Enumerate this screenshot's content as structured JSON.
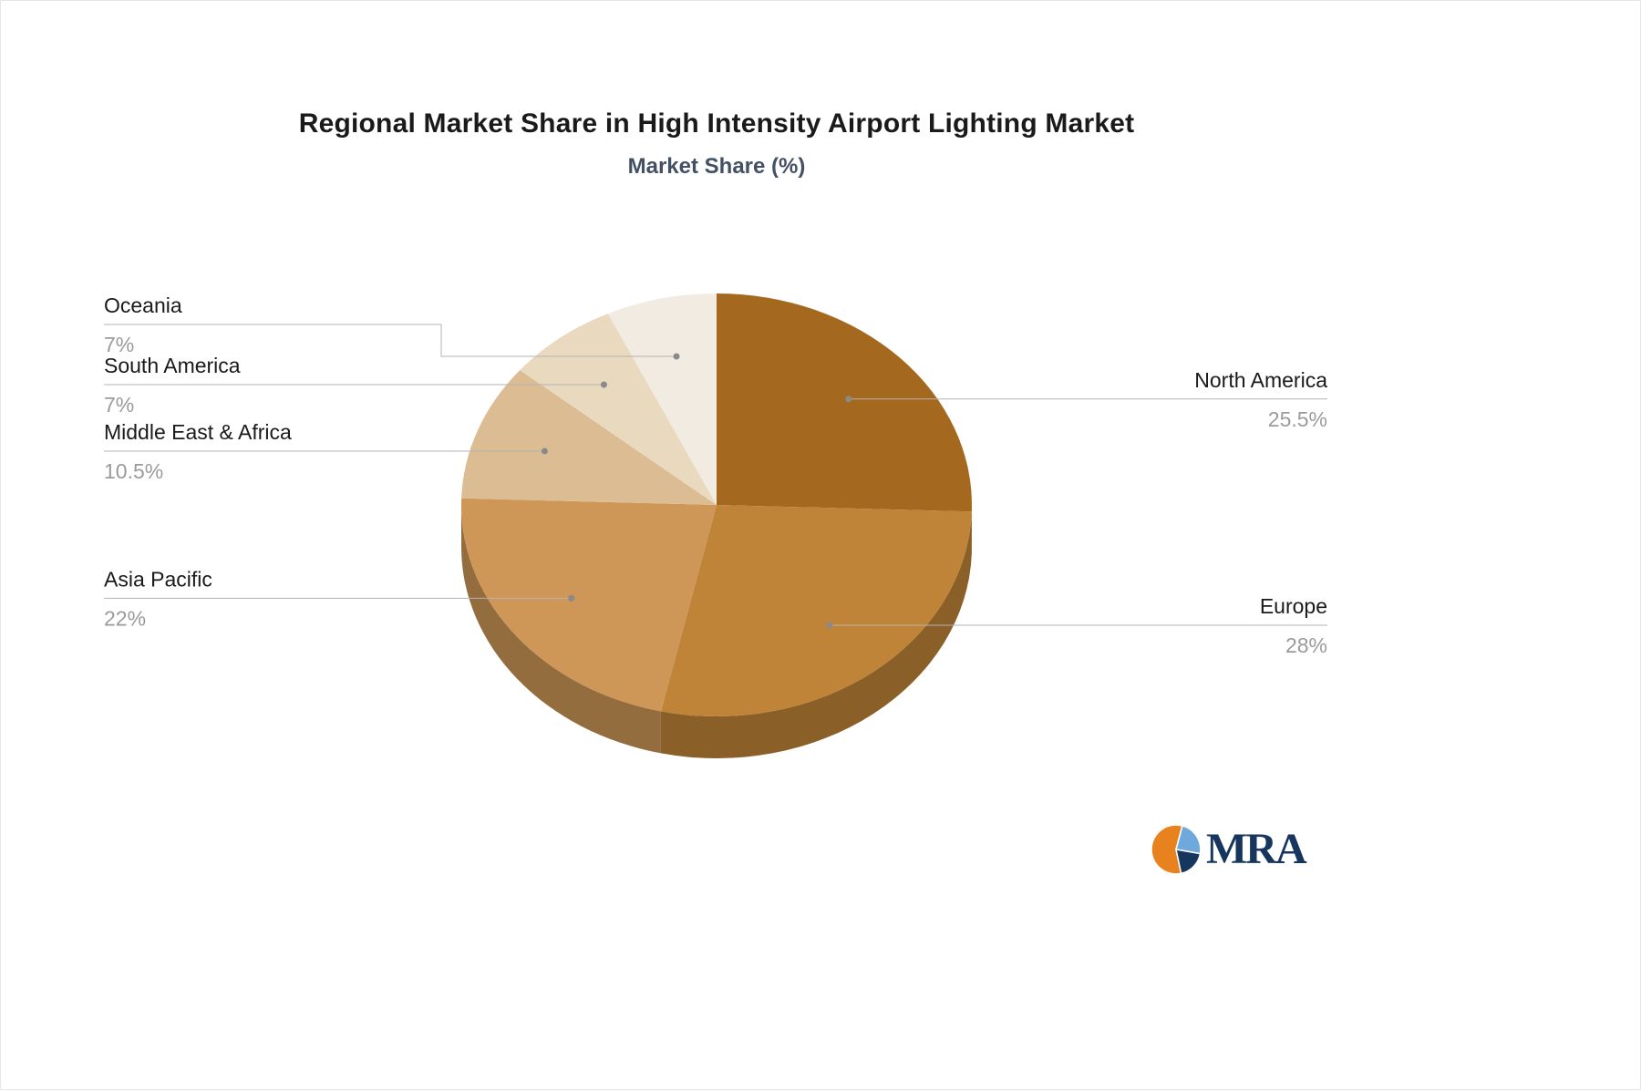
{
  "chart_data": {
    "type": "pie",
    "title": "Regional Market Share in High Intensity Airport Lighting Market",
    "subtitle": "Market Share (%)",
    "style": "3d",
    "direction": "clockwise",
    "start_angle_deg": 0,
    "legend": "none",
    "label_layout": "leader-lines",
    "labels": [
      "North America",
      "Europe",
      "Asia Pacific",
      "Middle East & Africa",
      "South America",
      "Oceania"
    ],
    "values": [
      25.5,
      28,
      22,
      10.5,
      7,
      7
    ],
    "display_values": [
      "25.5%",
      "28%",
      "22%",
      "10.5%",
      "7%",
      "7%"
    ],
    "colors": [
      "#a4691e",
      "#c08438",
      "#ce9757",
      "#dcbc92",
      "#e9d9bf",
      "#f1ebe2"
    ],
    "label_name_color": "#1a1a1a",
    "label_value_color": "#9b9b9b",
    "leader_line_color": "#b3b3b3",
    "title_color": "#1a1a1a",
    "subtitle_color": "#445064"
  },
  "logo": {
    "text": "MRA",
    "colors": {
      "orange": "#e8821e",
      "light_blue": "#6fa8dc",
      "navy": "#17365d",
      "text": "#17365d"
    }
  }
}
